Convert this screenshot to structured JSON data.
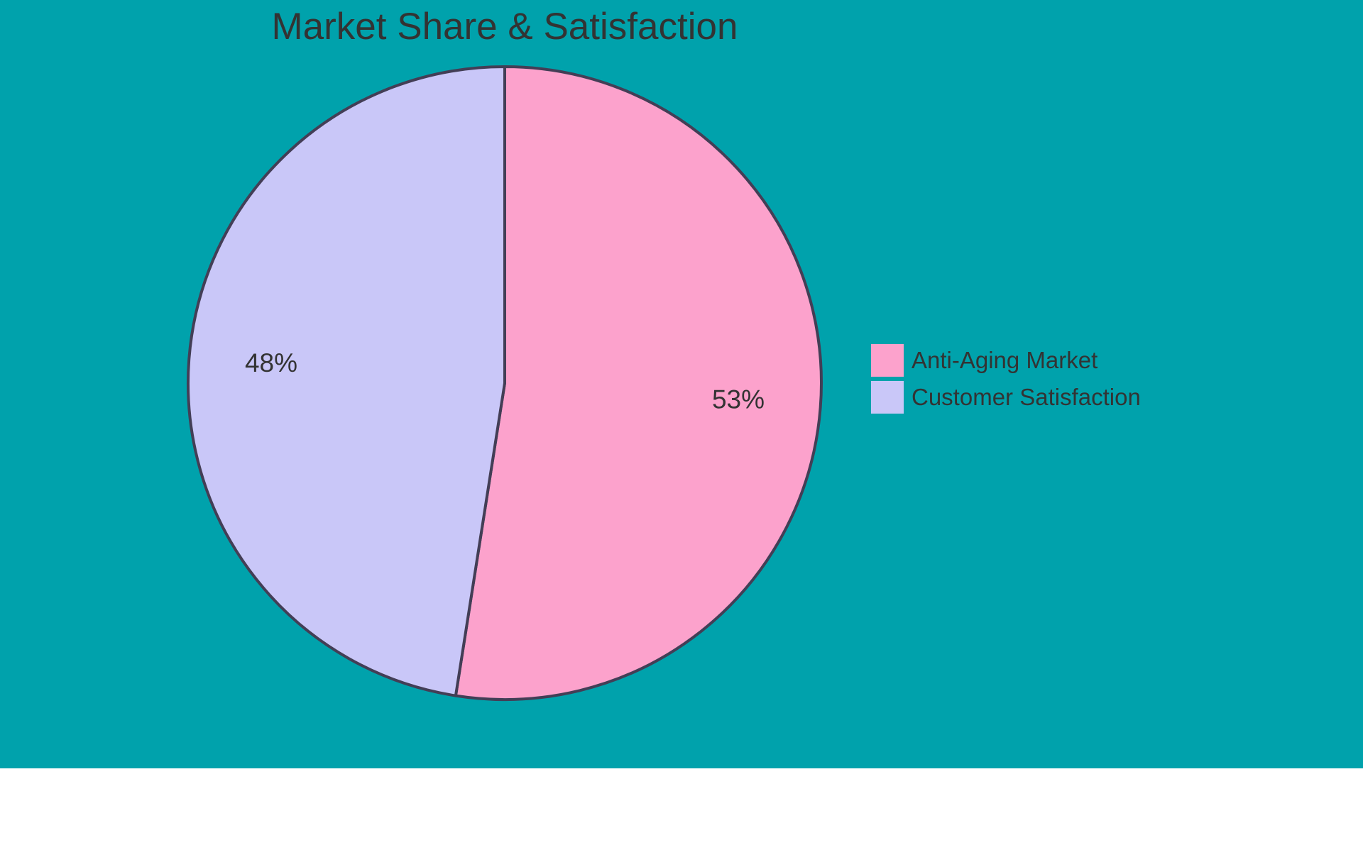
{
  "chart_data": {
    "type": "pie",
    "title": "Market Share & Satisfaction",
    "items": [
      {
        "label": "Anti-Aging Market",
        "value": 53,
        "pct_label": "53%",
        "color": "#FCA2CC"
      },
      {
        "label": "Customer Satisfaction",
        "value": 48,
        "pct_label": "48%",
        "color": "#C9C7F8"
      }
    ],
    "start_angle_deg": 0,
    "direction": "clockwise",
    "legend_position": "right",
    "slice_border_color": "#433E56",
    "slice_border_width": 4,
    "background_color": "#00A2AC",
    "page_background_color": "#ffffff",
    "text_color": "#333333"
  }
}
